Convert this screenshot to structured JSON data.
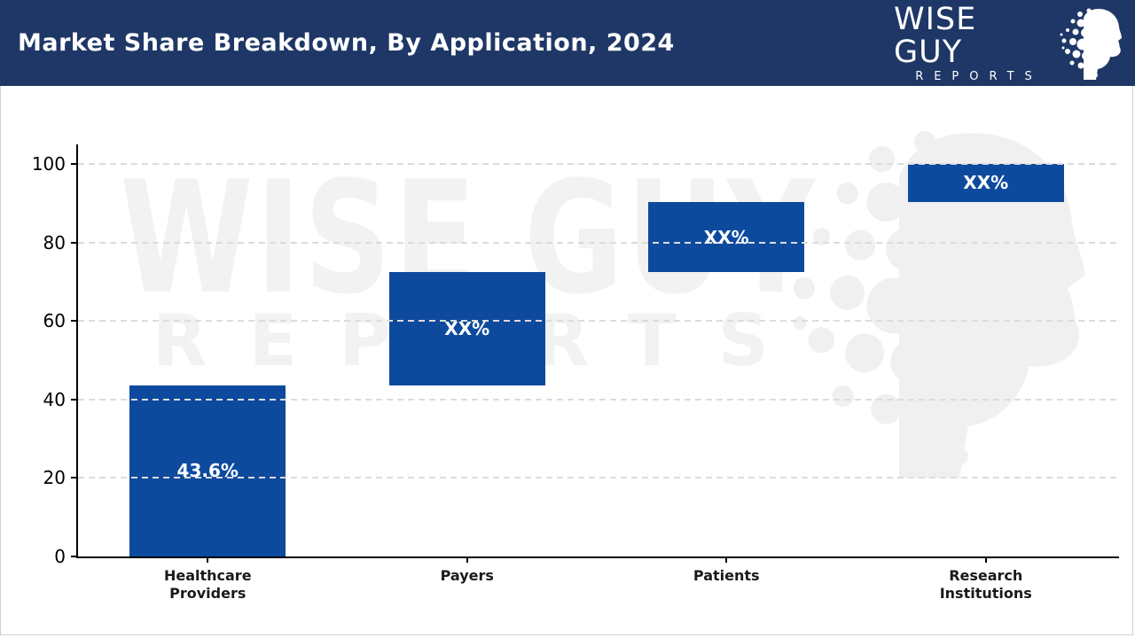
{
  "header": {
    "title": "Market Share Breakdown, By Application, 2024",
    "logo": {
      "line1": "WISE GUY",
      "line2": "REPORTS"
    }
  },
  "watermark": {
    "line1": "WISE GUY",
    "line2": "REPORTS"
  },
  "colors": {
    "header_bg": "#1e3766",
    "bar": "#0d4a9e",
    "grid": "#dcdcdc",
    "axis": "#000000",
    "watermark": "#f2f2f2",
    "title_text": "#ffffff",
    "bar_label_text": "#ffffff"
  },
  "chart_data": {
    "type": "bar",
    "subtype": "waterfall",
    "title": "Market Share Breakdown, By Application, 2024",
    "categories": [
      {
        "lines": [
          "Healthcare",
          "Providers"
        ]
      },
      {
        "lines": [
          "Payers"
        ]
      },
      {
        "lines": [
          "Patients"
        ]
      },
      {
        "lines": [
          "Research",
          "Institutions"
        ]
      }
    ],
    "bars": [
      {
        "category": "Healthcare Providers",
        "label": "43.6%",
        "start": 0,
        "end": 43.6
      },
      {
        "category": "Payers",
        "label": "XX%",
        "start": 43.6,
        "end": 72.4
      },
      {
        "category": "Patients",
        "label": "XX%",
        "start": 72.4,
        "end": 90.3
      },
      {
        "category": "Research Institutions",
        "label": "XX%",
        "start": 90.3,
        "end": 100
      }
    ],
    "yticks": [
      0,
      20,
      40,
      60,
      80,
      100
    ],
    "ylim": [
      0,
      104
    ],
    "xlabel": "",
    "ylabel": "",
    "grid": "dashed-horizontal",
    "legend": "none"
  }
}
